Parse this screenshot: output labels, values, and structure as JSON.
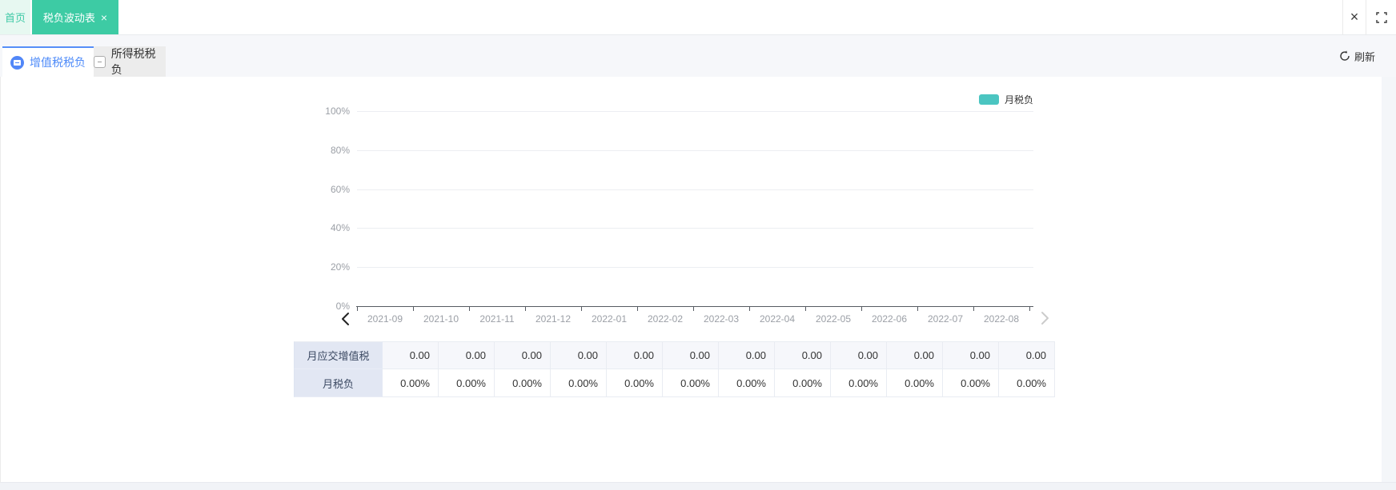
{
  "tabbar": {
    "home": "首页",
    "active": "税负波动表",
    "active_close": "×",
    "window_close": "×"
  },
  "toolbar": {
    "tabs": [
      {
        "label": "增值税税负"
      },
      {
        "label": "所得税税负"
      }
    ],
    "refresh": "刷新"
  },
  "chart_data": {
    "type": "bar",
    "title": "",
    "categories": [
      "2021-09",
      "2021-10",
      "2021-11",
      "2021-12",
      "2022-01",
      "2022-02",
      "2022-03",
      "2022-04",
      "2022-05",
      "2022-06",
      "2022-07",
      "2022-08"
    ],
    "series": [
      {
        "name": "月税负",
        "color": "#4BC5C1",
        "values": [
          0,
          0,
          0,
          0,
          0,
          0,
          0,
          0,
          0,
          0,
          0,
          0
        ]
      }
    ],
    "y_ticks": [
      "0%",
      "20%",
      "40%",
      "60%",
      "80%",
      "100%"
    ],
    "ylim": [
      0,
      100
    ],
    "grid": true,
    "legend": {
      "label": "月税负",
      "position": "top-right",
      "color": "#4BC5C1"
    }
  },
  "table": {
    "rows": [
      {
        "label": "月应交增值税",
        "values": [
          "0.00",
          "0.00",
          "0.00",
          "0.00",
          "0.00",
          "0.00",
          "0.00",
          "0.00",
          "0.00",
          "0.00",
          "0.00",
          "0.00"
        ]
      },
      {
        "label": "月税负",
        "values": [
          "0.00%",
          "0.00%",
          "0.00%",
          "0.00%",
          "0.00%",
          "0.00%",
          "0.00%",
          "0.00%",
          "0.00%",
          "0.00%",
          "0.00%",
          "0.00%"
        ]
      }
    ]
  },
  "colors": {
    "accent_teal": "#3DCBA4",
    "accent_blue": "#568EF8",
    "series_teal": "#4BC5C1"
  }
}
